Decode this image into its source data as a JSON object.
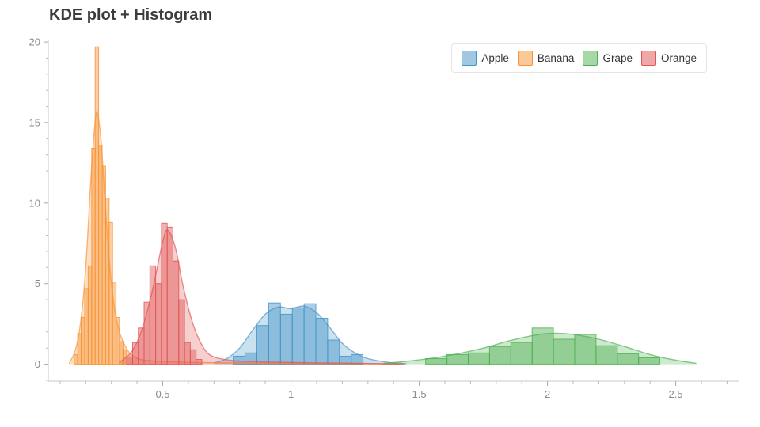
{
  "title": "KDE plot + Histogram",
  "legend": {
    "items": [
      {
        "label": "Apple",
        "color": "#4292c6"
      },
      {
        "label": "Banana",
        "color": "#f79232"
      },
      {
        "label": "Grape",
        "color": "#4daf4f"
      },
      {
        "label": "Orange",
        "color": "#e05252"
      }
    ]
  },
  "chart_data": {
    "type": "histogram+kde",
    "title": "KDE plot + Histogram",
    "xlabel": "",
    "ylabel": "",
    "xlim": [
      0.054,
      2.748
    ],
    "ylim": [
      -1.05,
      20.15
    ],
    "grid": false,
    "legend_position": "top-right-inside",
    "x_ticks": {
      "major": [
        0.5,
        1,
        1.5,
        2,
        2.5
      ],
      "labels": [
        "0.5",
        "1",
        "1.5",
        "2",
        "2.5"
      ],
      "minor_step": 0.1
    },
    "y_ticks": {
      "major": [
        0,
        5,
        10,
        15,
        20
      ],
      "labels": [
        "0",
        "5",
        "10",
        "15",
        "20"
      ],
      "minor_step": 1
    },
    "series": [
      {
        "name": "Apple",
        "color": "#4292c6",
        "bin_start": 0.775,
        "bin_width": 0.046,
        "bar_heights": [
          0.5,
          0.7,
          2.4,
          3.8,
          3.1,
          3.5,
          3.75,
          2.85,
          1.5,
          0.5,
          0.6
        ],
        "kde": {
          "x": [
            0.7,
            0.75,
            0.8,
            0.85,
            0.9,
            0.95,
            1.0,
            1.05,
            1.1,
            1.15,
            1.2,
            1.25,
            1.3,
            1.38,
            1.45
          ],
          "y": [
            0.08,
            0.35,
            1.0,
            2.1,
            3.1,
            3.55,
            3.45,
            3.6,
            3.2,
            2.3,
            1.3,
            0.7,
            0.35,
            0.12,
            0.03
          ]
        }
      },
      {
        "name": "Banana",
        "color": "#f79232",
        "bin_start": 0.155,
        "bin_width": 0.0136,
        "bar_heights": [
          0.6,
          1.9,
          2.9,
          4.7,
          6.1,
          13.4,
          19.7,
          13.6,
          12.3,
          10.3,
          8.8,
          5.1,
          2.9,
          1.4,
          0.9
        ],
        "kde": {
          "x": [
            0.135,
            0.16,
            0.18,
            0.2,
            0.22,
            0.235,
            0.245,
            0.26,
            0.28,
            0.3,
            0.325,
            0.355,
            0.39,
            0.45,
            0.6,
            0.8,
            1.05,
            1.3,
            1.42
          ],
          "y": [
            0.05,
            0.9,
            2.6,
            6.0,
            11.5,
            14.8,
            15.6,
            13.8,
            9.0,
            5.0,
            2.4,
            1.1,
            0.45,
            0.22,
            0.12,
            0.08,
            0.05,
            0.03,
            0.01
          ]
        }
      },
      {
        "name": "Grape",
        "color": "#4daf4f",
        "bin_start": 1.525,
        "bin_width": 0.083,
        "bar_heights": [
          0.35,
          0.6,
          0.7,
          1.1,
          1.35,
          2.25,
          1.55,
          1.85,
          1.15,
          0.65,
          0.4
        ],
        "kde": {
          "x": [
            1.36,
            1.45,
            1.55,
            1.65,
            1.75,
            1.85,
            1.95,
            2.02,
            2.1,
            2.2,
            2.3,
            2.4,
            2.5,
            2.58
          ],
          "y": [
            0.05,
            0.18,
            0.38,
            0.65,
            1.0,
            1.45,
            1.8,
            1.92,
            1.85,
            1.55,
            1.1,
            0.6,
            0.25,
            0.06
          ]
        }
      },
      {
        "name": "Orange",
        "color": "#e05252",
        "bin_start": 0.36,
        "bin_width": 0.0225,
        "bar_heights": [
          0.45,
          1.35,
          2.25,
          3.85,
          6.1,
          5.0,
          8.75,
          8.5,
          6.4,
          4.0,
          1.35,
          0.9,
          0.3
        ],
        "kde": {
          "x": [
            0.33,
            0.38,
            0.42,
            0.46,
            0.5,
            0.52,
            0.55,
            0.58,
            0.62,
            0.66,
            0.7,
            0.78,
            0.9,
            1.1,
            1.3,
            1.44
          ],
          "y": [
            0.1,
            0.8,
            2.2,
            4.6,
            7.6,
            8.3,
            7.2,
            4.8,
            2.4,
            1.0,
            0.45,
            0.22,
            0.14,
            0.09,
            0.05,
            0.01
          ]
        }
      }
    ]
  }
}
